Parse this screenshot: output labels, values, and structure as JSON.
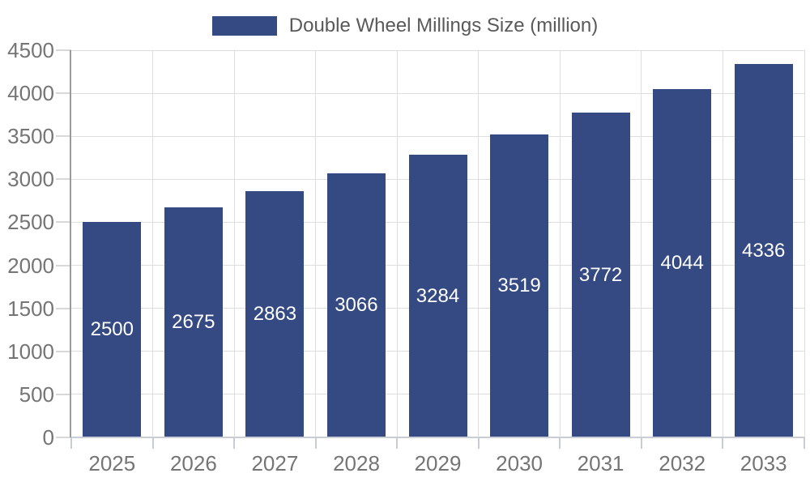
{
  "chart_data": {
    "type": "bar",
    "title": "",
    "legend_label": "Double Wheel Millings Size (million)",
    "legend_position": "top",
    "categories": [
      "2025",
      "2026",
      "2027",
      "2028",
      "2029",
      "2030",
      "2031",
      "2032",
      "2033"
    ],
    "values": [
      2500,
      2675,
      2863,
      3066,
      3284,
      3519,
      3772,
      4044,
      4336
    ],
    "xlabel": "",
    "ylabel": "",
    "ylim": [
      0,
      4500
    ],
    "ytick_step": 500,
    "ytick_labels": [
      "0",
      "500",
      "1000",
      "1500",
      "2000",
      "2500",
      "3000",
      "3500",
      "4000",
      "4500"
    ],
    "grid": true,
    "bar_color": "#354A83",
    "bar_label_color": "#FFFFFF",
    "axis_text_color": "#757575",
    "legend_text_color": "#595959"
  }
}
